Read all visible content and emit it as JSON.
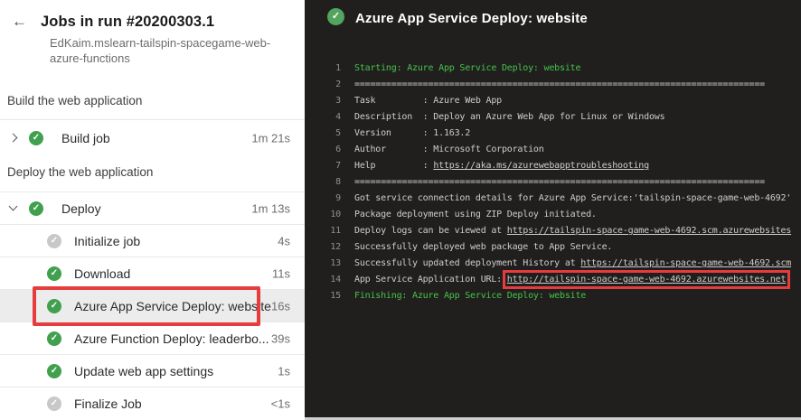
{
  "colors": {
    "annotation_red": "#e63c3e",
    "success_green": "#41a04e",
    "pending_gray": "#c8c8c8",
    "log_green": "#45c34a",
    "terminal_background": "#211f1e"
  },
  "icons": {
    "back": "←",
    "check": "✓"
  },
  "jobs": {
    "title": "Jobs in run #20200303.1",
    "subtitle": "EdKaim.mslearn-tailspin-spacegame-web-azure-functions",
    "stage1": "Build the web application",
    "stage2": "Deploy the web application",
    "build": {
      "label": "Build job",
      "duration": "1m 21s"
    },
    "deploy": {
      "label": "Deploy",
      "duration": "1m 13s"
    },
    "steps": [
      {
        "label": "Initialize job",
        "duration": "4s",
        "status": "skipped"
      },
      {
        "label": "Download",
        "duration": "11s",
        "status": "success"
      },
      {
        "label": "Azure App Service Deploy: website",
        "duration": "16s",
        "status": "success",
        "selected": true,
        "annotated": true
      },
      {
        "label": "Azure Function Deploy: leaderbo...",
        "duration": "39s",
        "status": "success"
      },
      {
        "label": "Update web app settings",
        "duration": "1s",
        "status": "success"
      },
      {
        "label": "Finalize Job",
        "duration": "<1s",
        "status": "skipped"
      }
    ]
  },
  "log": {
    "title": "Azure App Service Deploy: website",
    "lines": [
      {
        "n": "1",
        "text": "Starting: Azure App Service Deploy: website",
        "kind": "green"
      },
      {
        "n": "2",
        "text": "=============================================================================="
      },
      {
        "n": "3",
        "text": "Task         : Azure Web App"
      },
      {
        "n": "4",
        "text": "Description  : Deploy an Azure Web App for Linux or Windows"
      },
      {
        "n": "5",
        "text": "Version      : 1.163.2"
      },
      {
        "n": "6",
        "text": "Author       : Microsoft Corporation"
      },
      {
        "n": "7",
        "pre": "Help         : ",
        "link": "https://aka.ms/azurewebapptroubleshooting"
      },
      {
        "n": "8",
        "text": "=============================================================================="
      },
      {
        "n": "9",
        "text": "Got service connection details for Azure App Service:'tailspin-space-game-web-4692'"
      },
      {
        "n": "10",
        "text": "Package deployment using ZIP Deploy initiated."
      },
      {
        "n": "11",
        "pre": "Deploy logs can be viewed at ",
        "link": "https://tailspin-space-game-web-4692.scm.azurewebsites"
      },
      {
        "n": "12",
        "text": "Successfully deployed web package to App Service."
      },
      {
        "n": "13",
        "pre": "Successfully updated deployment History at ",
        "link": "https://tailspin-space-game-web-4692.scm"
      },
      {
        "n": "14",
        "pre": "App Service Application URL: ",
        "link": "http://tailspin-space-game-web-4692.azurewebsites.net",
        "annotated": true
      },
      {
        "n": "15",
        "text": "Finishing: Azure App Service Deploy: website",
        "kind": "green"
      }
    ]
  }
}
